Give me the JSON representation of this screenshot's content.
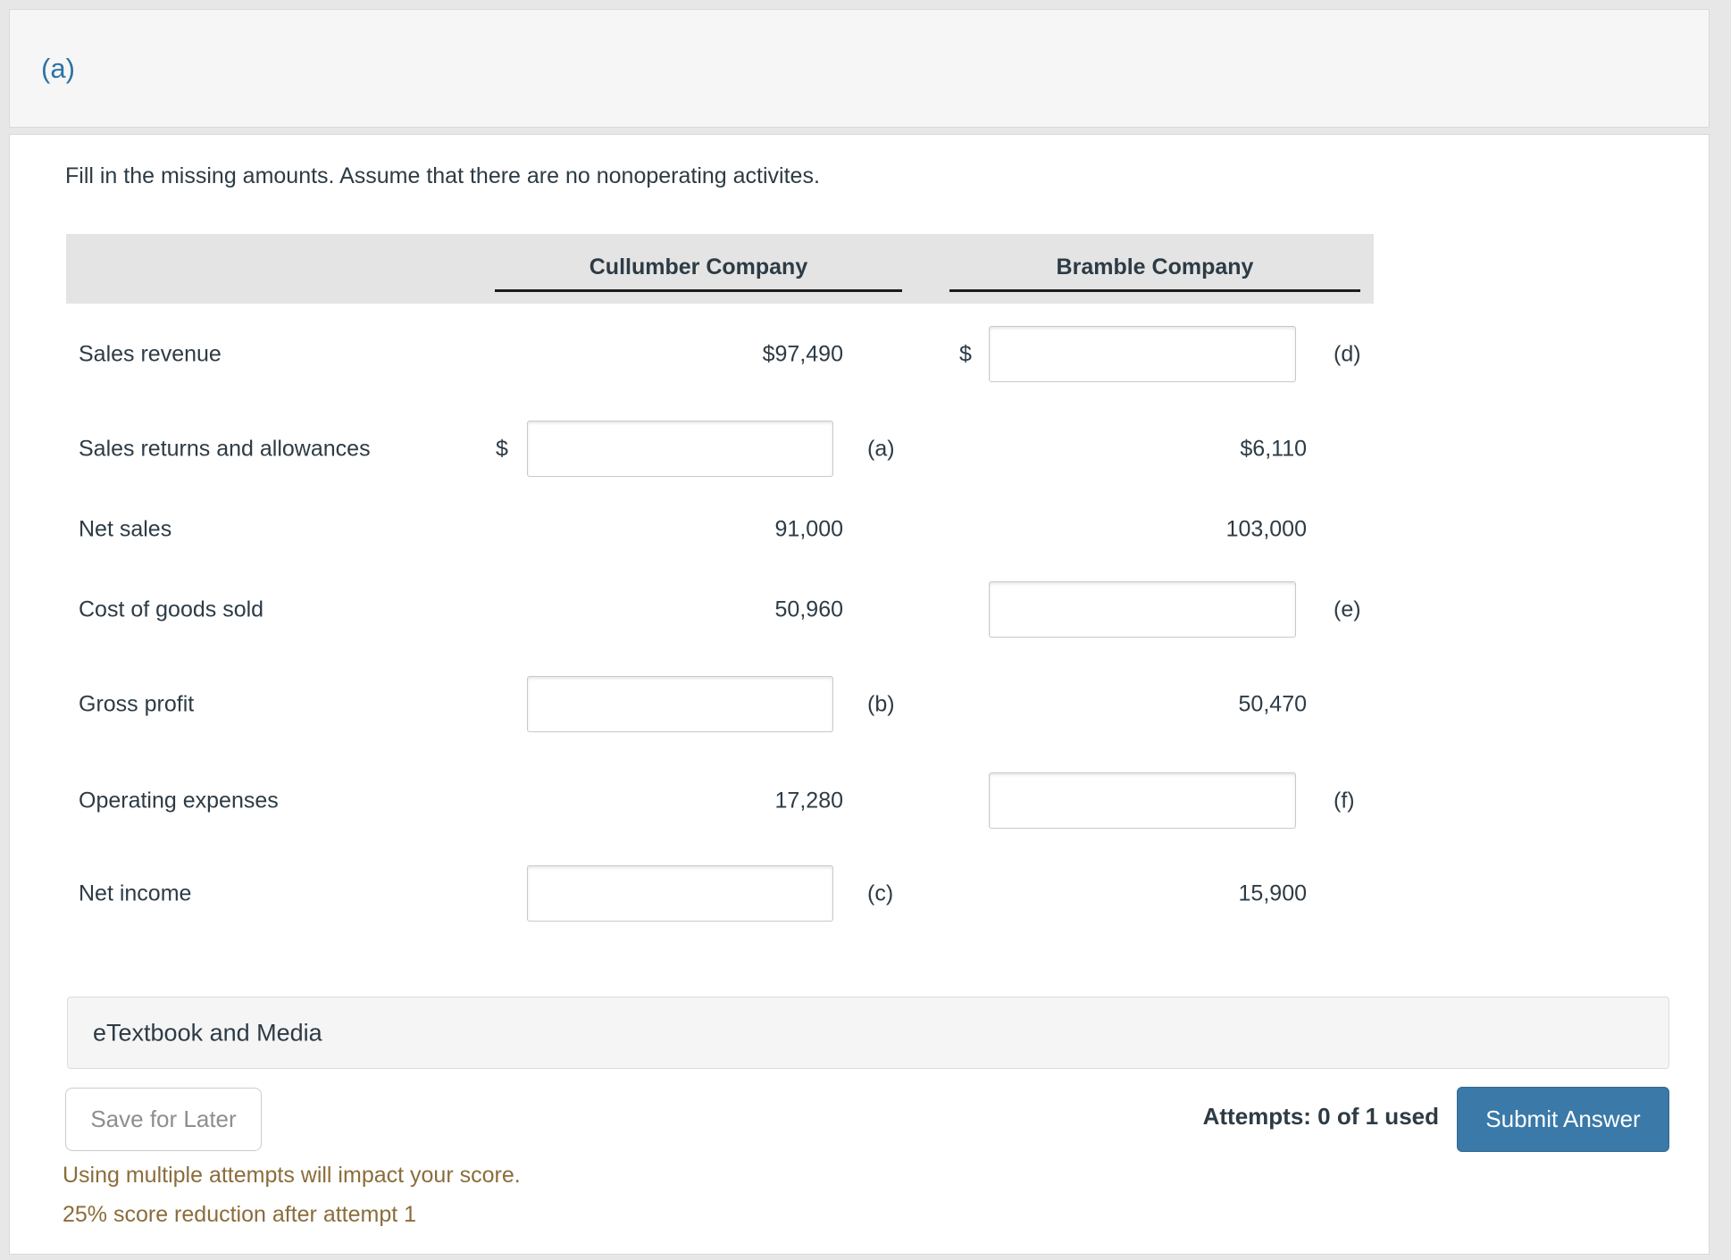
{
  "header": {
    "section_label": "(a)"
  },
  "main": {
    "instructions": "Fill in the missing amounts. Assume that there are no nonoperating activites.",
    "table": {
      "column_headers": [
        "Cullumber Company",
        "Bramble Company"
      ],
      "rows": [
        {
          "label": "Sales revenue",
          "cullumber": {
            "kind": "value",
            "text": "$97,490"
          },
          "bramble": {
            "kind": "input",
            "tag": "(d)",
            "dollar": "$",
            "value": ""
          }
        },
        {
          "label": "Sales returns and allowances",
          "cullumber": {
            "kind": "input",
            "tag": "(a)",
            "dollar": "$",
            "value": ""
          },
          "bramble": {
            "kind": "value",
            "text": "$6,110"
          }
        },
        {
          "label": "Net sales",
          "cullumber": {
            "kind": "value",
            "text": "91,000"
          },
          "bramble": {
            "kind": "value",
            "text": "103,000"
          }
        },
        {
          "label": "Cost of goods sold",
          "cullumber": {
            "kind": "value",
            "text": "50,960"
          },
          "bramble": {
            "kind": "input",
            "tag": "(e)",
            "value": ""
          }
        },
        {
          "label": "Gross profit",
          "cullumber": {
            "kind": "input",
            "tag": "(b)",
            "value": ""
          },
          "bramble": {
            "kind": "value",
            "text": "50,470"
          }
        },
        {
          "label": "Operating expenses",
          "cullumber": {
            "kind": "value",
            "text": "17,280"
          },
          "bramble": {
            "kind": "input",
            "tag": "(f)",
            "value": ""
          }
        },
        {
          "label": "Net income",
          "cullumber": {
            "kind": "input",
            "tag": "(c)",
            "value": ""
          },
          "bramble": {
            "kind": "value",
            "text": "15,900"
          }
        }
      ]
    },
    "footer": {
      "etextbook_label": "eTextbook and Media",
      "save_button_label": "Save for Later",
      "attempts_text": "Attempts: 0 of 1 used",
      "submit_button_label": "Submit Answer",
      "warning_line1": "Using multiple attempts will impact your score.",
      "warning_line2": "25% score reduction after attempt 1"
    }
  },
  "colors": {
    "accent_blue": "#2d73a6",
    "submit_button_blue": "#3a79a8",
    "warning_text": "#8a6d3b",
    "table_header_band": "#e4e4e4",
    "body_text": "#2d3b45"
  }
}
